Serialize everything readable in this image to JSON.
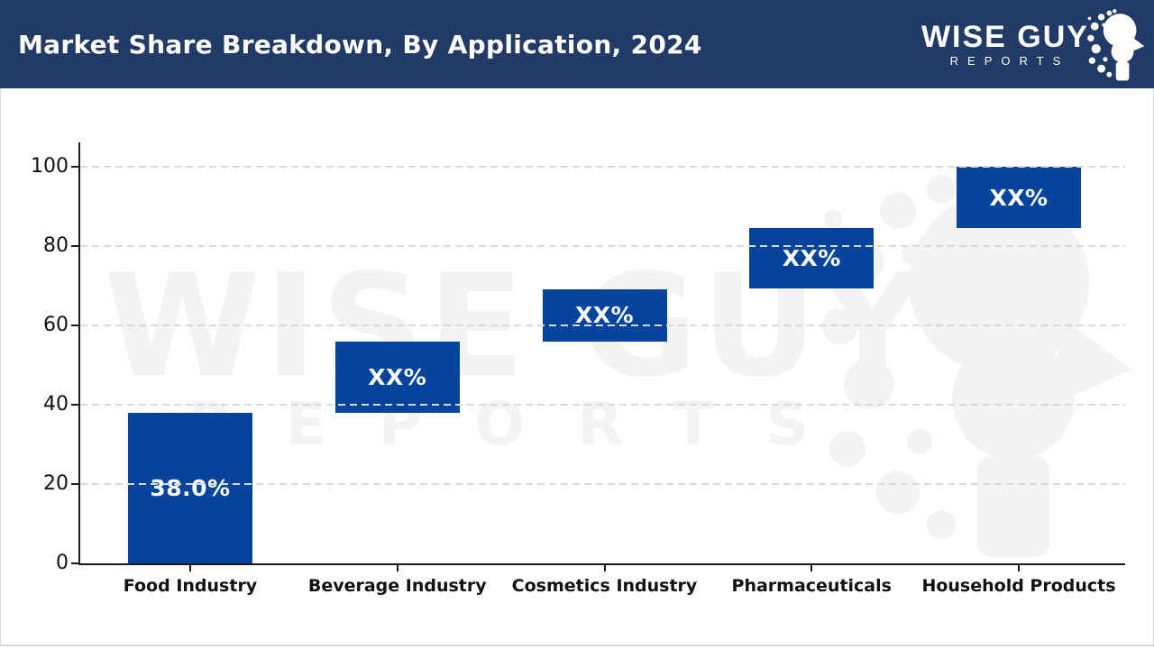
{
  "header": {
    "title": "Market Share Breakdown, By Application, 2024",
    "logo": {
      "line1": "WISE GUY",
      "line2": "REPORTS"
    }
  },
  "watermark": {
    "line1": "WISE GUY",
    "line2": "REPORTS"
  },
  "chart_data": {
    "type": "bar",
    "subtype": "waterfall-staircase",
    "title": "Market Share Breakdown, By Application, 2024",
    "xlabel": "",
    "ylabel": "",
    "ylim": [
      0,
      106
    ],
    "yticks": [
      0,
      20,
      40,
      60,
      80,
      100
    ],
    "grid": "horizontal-dashed",
    "legend": "none",
    "bar_color": "#04449c",
    "bar_label_color": "#ffffff",
    "categories": [
      "Food Industry",
      "Beverage Industry",
      "Cosmetics Industry",
      "Pharmaceuticals",
      "Household Products"
    ],
    "bars": [
      {
        "category": "Food Industry",
        "base": 0,
        "top": 38,
        "label": "38.0%"
      },
      {
        "category": "Beverage Industry",
        "base": 38,
        "top": 56,
        "label": "XX%"
      },
      {
        "category": "Cosmetics Industry",
        "base": 56,
        "top": 69,
        "label": "XX%"
      },
      {
        "category": "Pharmaceuticals",
        "base": 69.3,
        "top": 84.5,
        "label": "XX%"
      },
      {
        "category": "Household Products",
        "base": 84.5,
        "top": 100,
        "label": "XX%"
      }
    ]
  },
  "colors": {
    "header_bg": "#223a66",
    "bar": "#04449c",
    "gridline": "#d9d9d9",
    "axis": "#1a1a1a",
    "watermark": "#f3f3f3"
  }
}
